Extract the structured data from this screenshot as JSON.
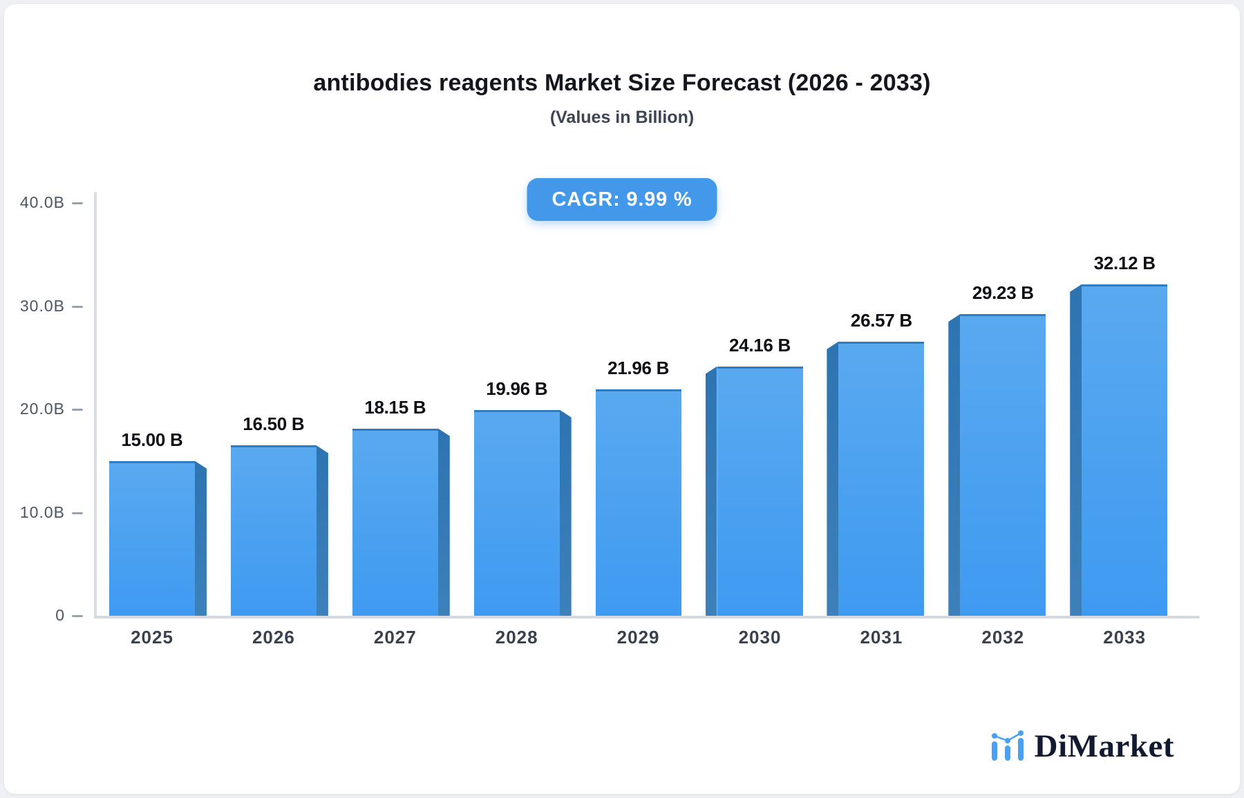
{
  "header": {
    "title": "antibodies reagents Market Size Forecast (2026 - 2033)",
    "subtitle": "(Values in Billion)",
    "cagr_label": "CAGR: 9.99 %"
  },
  "chart_data": {
    "type": "bar",
    "title": "antibodies reagents Market Size Forecast (2026 - 2033)",
    "subtitle": "(Values in Billion)",
    "unit": "Billion",
    "cagr_percent": 9.99,
    "categories": [
      "2025",
      "2026",
      "2027",
      "2028",
      "2029",
      "2030",
      "2031",
      "2032",
      "2033"
    ],
    "values": [
      15.0,
      16.5,
      18.15,
      19.96,
      21.96,
      24.16,
      26.57,
      29.23,
      32.12
    ],
    "bar_labels": [
      "15.00 B",
      "16.50 B",
      "18.15 B",
      "19.96 B",
      "21.96 B",
      "24.16 B",
      "26.57 B",
      "29.23 B",
      "32.12 B"
    ],
    "ylim": [
      0,
      40
    ],
    "yticks": [
      {
        "value": 0,
        "label": "0"
      },
      {
        "value": 10,
        "label": "10.0B"
      },
      {
        "value": 20,
        "label": "20.0B"
      },
      {
        "value": 30,
        "label": "30.0B"
      },
      {
        "value": 40,
        "label": "40.0B"
      }
    ],
    "grid": false,
    "legend": null,
    "colors": {
      "bar_face_top": "#59a9f0",
      "bar_face_bottom": "#3f9af1",
      "bar_top_edge": "#2f7cbe",
      "bar_side_dark": "#2d74b2",
      "bar_side_light": "#3d80ba",
      "axis_line": "#d9dce1",
      "badge_background": "#4398ea"
    }
  },
  "logo": {
    "text": "DiMarket",
    "icon": "mini-bar-chart-icon",
    "icon_color": "#4aa0f5",
    "text_color": "#111a30"
  }
}
